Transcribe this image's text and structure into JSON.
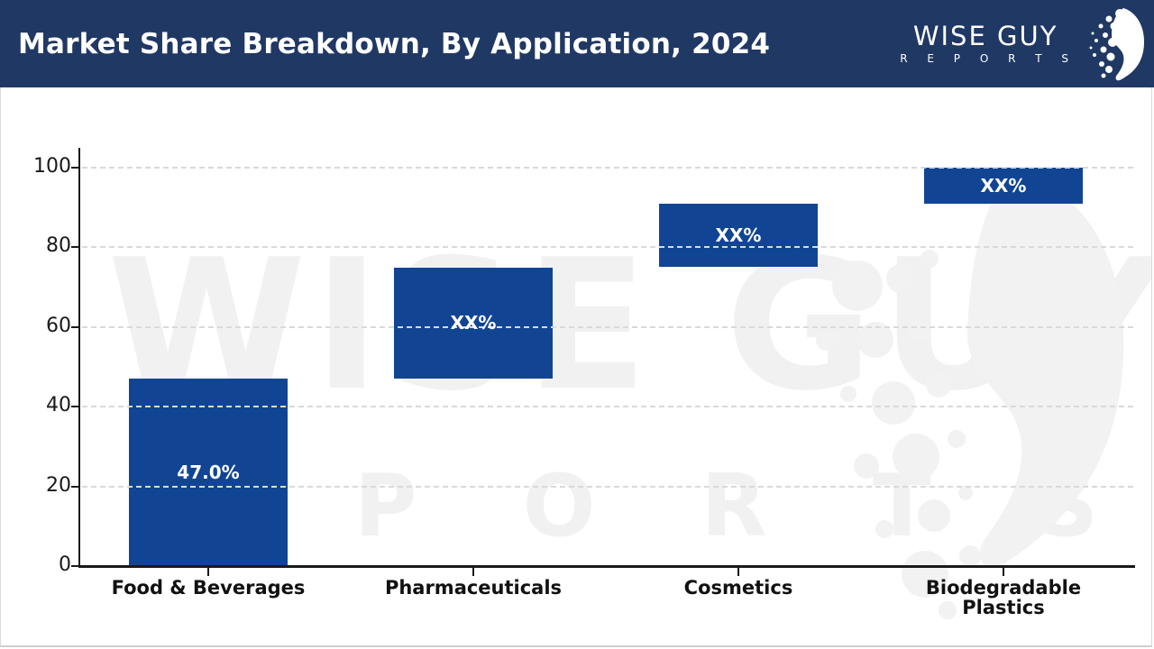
{
  "header": {
    "title": "Market Share Breakdown, By Application, 2024",
    "logo": {
      "line1": "WISE GUY",
      "line2": "R E P O R T S"
    }
  },
  "watermark": {
    "line1": "WISE GUY",
    "line2": "P O R T S"
  },
  "chart_data": {
    "type": "bar",
    "subtype": "waterfall",
    "title": "Market Share Breakdown, By Application, 2024",
    "xlabel": "",
    "ylabel": "",
    "categories": [
      "Food & Beverages",
      "Pharmaceuticals",
      "Cosmetics",
      "Biodegradable\nPlastics"
    ],
    "segments": [
      {
        "category": "Food & Beverages",
        "start": 0,
        "end": 47,
        "label": "47.0%"
      },
      {
        "category": "Pharmaceuticals",
        "start": 47,
        "end": 75,
        "label": "XX%"
      },
      {
        "category": "Cosmetics",
        "start": 75,
        "end": 91,
        "label": "XX%"
      },
      {
        "category": "Biodegradable Plastics",
        "start": 91,
        "end": 100,
        "label": "XX%"
      }
    ],
    "y_ticks": [
      0,
      20,
      40,
      60,
      80,
      100
    ],
    "ylim": [
      0,
      105
    ],
    "grid": "horizontal dashed, drawn over bars",
    "legend": "none",
    "bar_color": "#114594",
    "bar_label_color": "#ffffff"
  },
  "colors": {
    "header_bg": "#203864",
    "axis": "#1a1a1a",
    "gridline": "#d9d9d9",
    "watermark": "#f1f1f1",
    "bar": "#114594"
  }
}
